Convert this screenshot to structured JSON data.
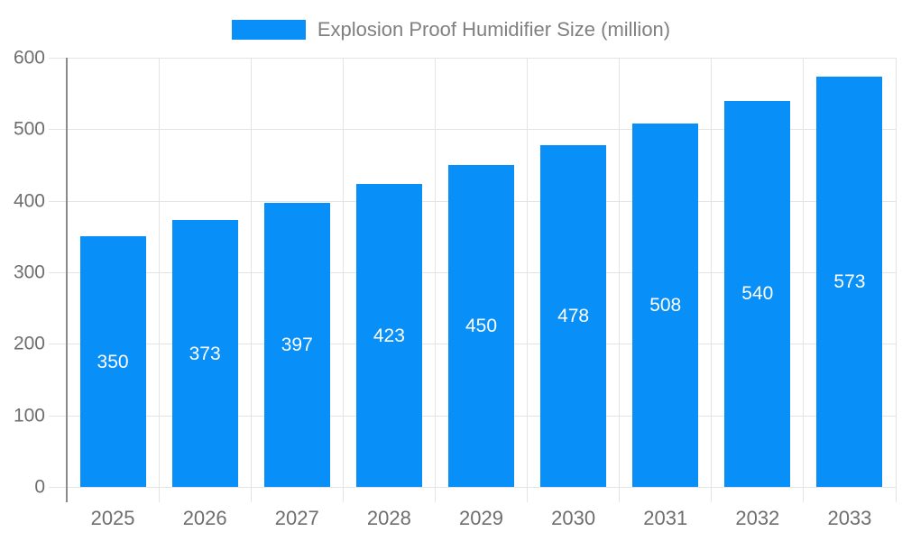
{
  "legend": {
    "label": "Explosion Proof Humidifier Size (million)"
  },
  "chart_data": {
    "type": "bar",
    "title": "Explosion Proof Humidifier Size (million)",
    "categories": [
      "2025",
      "2026",
      "2027",
      "2028",
      "2029",
      "2030",
      "2031",
      "2032",
      "2033"
    ],
    "values": [
      350,
      373,
      397,
      423,
      450,
      478,
      508,
      540,
      573
    ],
    "xlabel": "",
    "ylabel": "",
    "ylim": [
      0,
      600
    ],
    "yticks": [
      0,
      100,
      200,
      300,
      400,
      500,
      600
    ],
    "grid": true,
    "legend_position": "top-center",
    "bar_color": "#0890f8",
    "bar_label_color": "#ffffff",
    "axis_text_color": "#6e6e6e",
    "grid_color": "#e4e4e4",
    "axis_line_color": "#8a8a8a",
    "background_color": "#ffffff"
  }
}
